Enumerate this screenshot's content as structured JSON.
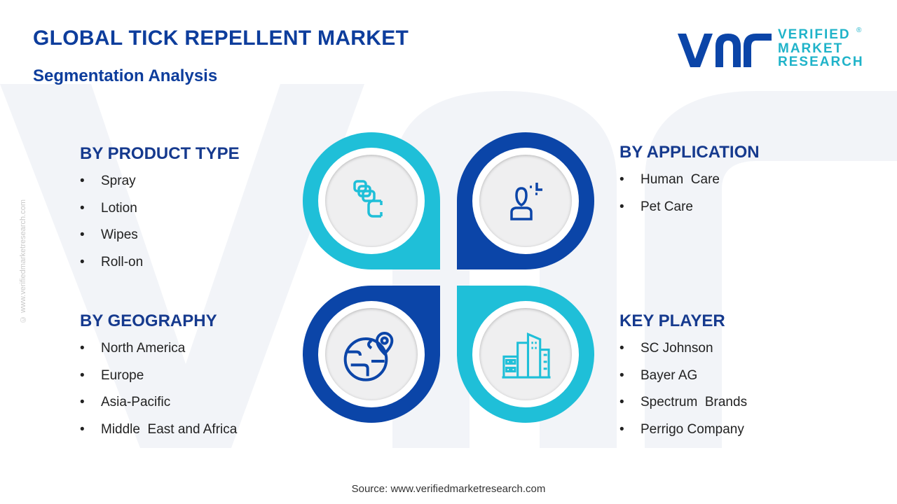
{
  "header": {
    "title": "GLOBAL TICK REPELLENT MARKET",
    "subtitle": "Segmentation Analysis"
  },
  "logo": {
    "line1": "VERIFIED",
    "line2": "MARKET",
    "line3": "RESEARCH",
    "mark": "vmr"
  },
  "side_text": "© www.verifiedmarketresearch.com",
  "segments": {
    "product": {
      "heading": "BY PRODUCT TYPE",
      "items": [
        "Spray",
        "Lotion",
        "Wipes",
        "Roll-on"
      ]
    },
    "application": {
      "heading": "BY APPLICATION",
      "items": [
        "Human  Care",
        "Pet Care"
      ]
    },
    "geography": {
      "heading": "BY GEOGRAPHY",
      "items": [
        "North America",
        "Europe",
        "Asia-Pacific",
        "Middle  East and Africa"
      ]
    },
    "players": {
      "heading": "KEY PLAYER",
      "items": [
        "SC Johnson",
        "Bayer AG",
        "Spectrum  Brands",
        "Perrigo Company"
      ]
    }
  },
  "bullet": "•",
  "source": "Source: www.verifiedmarketresearch.com",
  "colors": {
    "cyan": "#1fbfd8",
    "blue": "#0b45a8",
    "title": "#0d3d9c"
  },
  "icons": [
    "product-layers-icon",
    "person-icon",
    "globe-location-icon",
    "buildings-icon"
  ]
}
